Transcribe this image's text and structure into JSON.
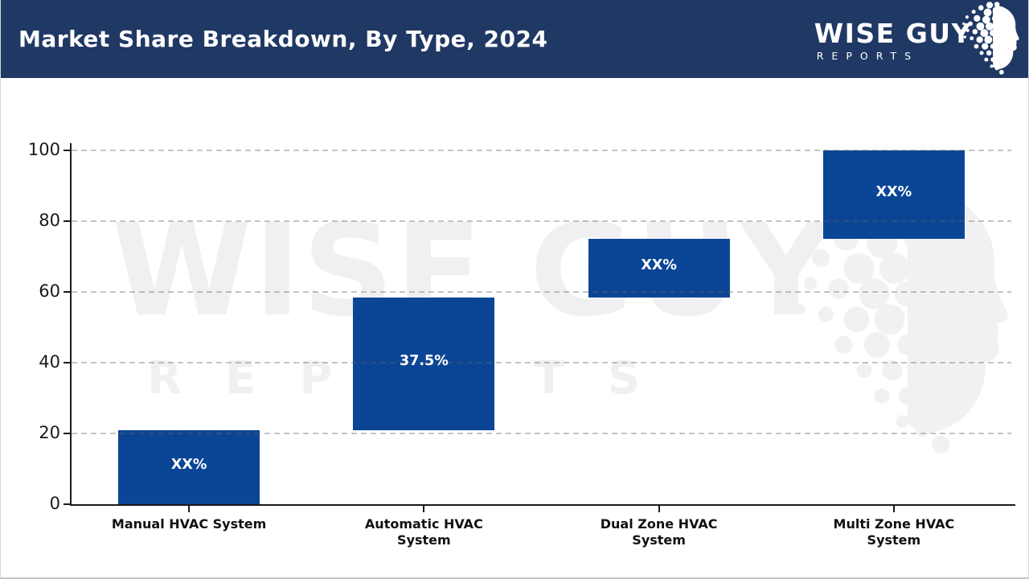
{
  "header": {
    "title": "Market Share Breakdown, By Type, 2024",
    "bg_color": "#203864",
    "logo": {
      "name": "WISE GUY",
      "sub": "REPORTS"
    }
  },
  "watermark": {
    "name": "WISE GUY",
    "sub": "REPORTS"
  },
  "chart_data": {
    "type": "bar",
    "subtype": "waterfall",
    "title": "Market Share Breakdown, By Type, 2024",
    "categories": [
      "Manual HVAC System",
      "Automatic HVAC System",
      "Dual Zone HVAC System",
      "Multi Zone HVAC System"
    ],
    "category_lines": [
      [
        "Manual HVAC System"
      ],
      [
        "Automatic HVAC",
        "System"
      ],
      [
        "Dual Zone HVAC",
        "System"
      ],
      [
        "Multi Zone HVAC",
        "System"
      ]
    ],
    "segments": [
      {
        "start": 0,
        "end": 21,
        "label": "XX%"
      },
      {
        "start": 21,
        "end": 58.5,
        "label": "37.5%"
      },
      {
        "start": 58.5,
        "end": 75,
        "label": "XX%"
      },
      {
        "start": 75,
        "end": 100,
        "label": "XX%"
      }
    ],
    "ylim": [
      0,
      105
    ],
    "yticks": [
      0,
      20,
      40,
      60,
      80,
      100
    ],
    "bar_color": "#0b4596",
    "bar_label_color": "#ffffff",
    "grid": {
      "axis": "y",
      "style": "dashed"
    },
    "legend": "none"
  }
}
